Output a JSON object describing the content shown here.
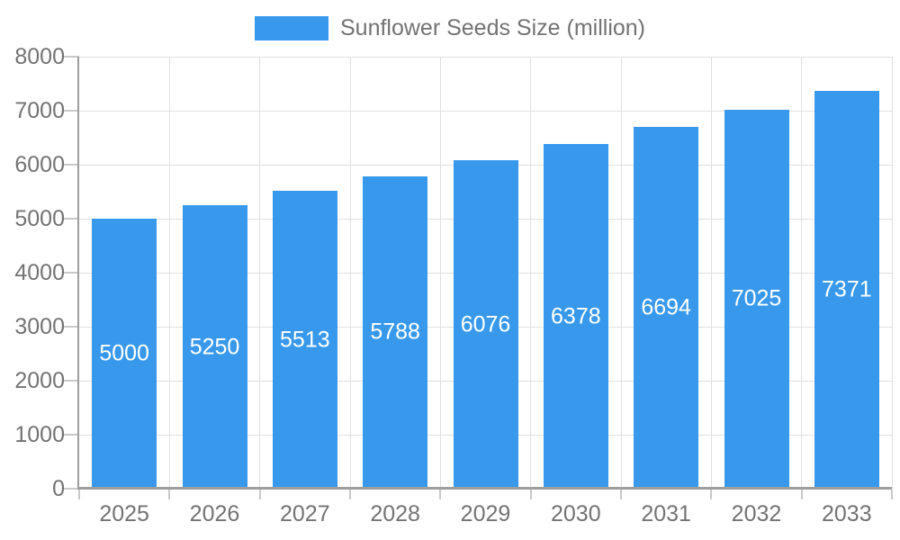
{
  "legend": {
    "label": "Sunflower Seeds Size (million)"
  },
  "chart_data": {
    "type": "bar",
    "title": "Sunflower Seeds Size (million)",
    "categories": [
      "2025",
      "2026",
      "2027",
      "2028",
      "2029",
      "2030",
      "2031",
      "2032",
      "2033"
    ],
    "values": [
      5000,
      5250,
      5513,
      5788,
      6076,
      6378,
      6694,
      7025,
      7371
    ],
    "xlabel": "",
    "ylabel": "",
    "ylim": [
      0,
      8000
    ],
    "ytick_step": 1000,
    "grid": true,
    "legend_position": "top-center",
    "value_labels": "inside-center-white",
    "colors": {
      "bar": "#3899ec",
      "value_label_text": "#ffffff",
      "axis_text": "#737373",
      "grid_line": "#e0e0e0",
      "tick_line": "#c9c9c9",
      "axis_line": "#9e9e9e",
      "background": "#ffffff"
    }
  }
}
